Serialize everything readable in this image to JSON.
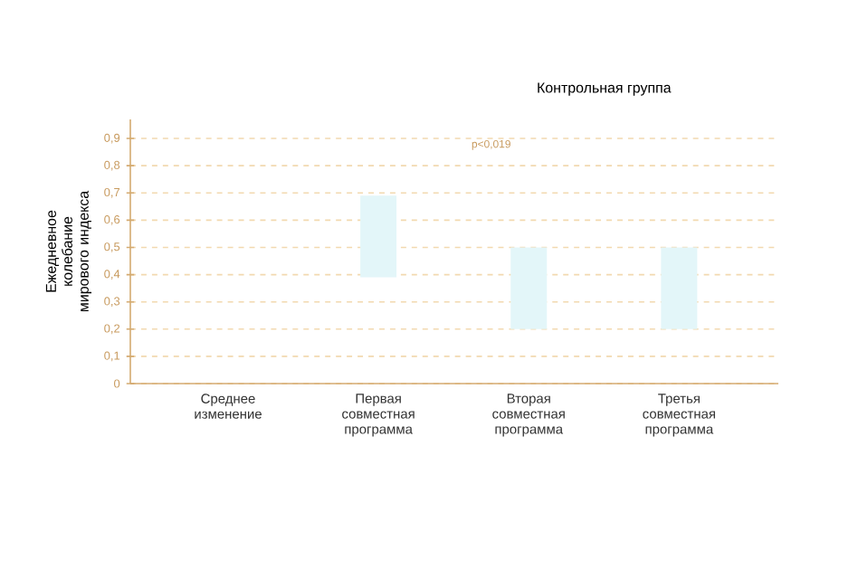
{
  "chart_data": {
    "type": "bar",
    "ylabel": "Ежедневное колебание мирового индекса",
    "categories": [
      "Среднее изменение",
      "Первая совместная программа",
      "Вторая совместная программа",
      "Третья совместная программа"
    ],
    "values": [
      null,
      0.3,
      0.3,
      0.3
    ],
    "base": [
      null,
      0.39,
      0.2,
      0.2
    ],
    "color": "#e3f6f9",
    "ylim": [
      0,
      0.97
    ],
    "yticks": [
      {
        "value": 0,
        "label": "0"
      },
      {
        "value": 0.1,
        "label": "0,1"
      },
      {
        "value": 0.2,
        "label": "0,2"
      },
      {
        "value": 0.3,
        "label": "0,3"
      },
      {
        "value": 0.4,
        "label": "0,4"
      },
      {
        "value": 0.5,
        "label": "0,5"
      },
      {
        "value": 0.6,
        "label": "0,6"
      },
      {
        "value": 0.7,
        "label": "0,7"
      },
      {
        "value": 0.8,
        "label": "0,8"
      },
      {
        "value": 0.9,
        "label": "0,9"
      }
    ],
    "grid": "y",
    "annotations": [
      "Контрольная группа",
      "p<0,019"
    ]
  }
}
